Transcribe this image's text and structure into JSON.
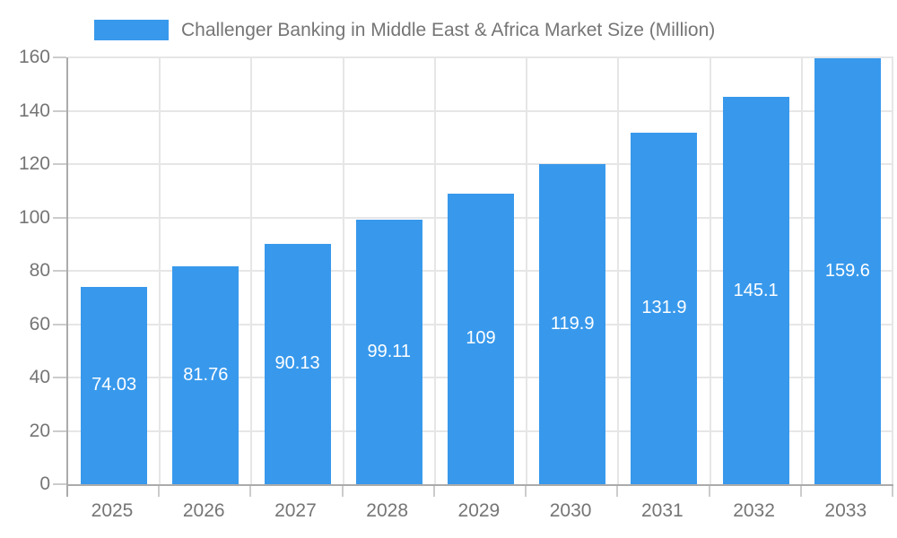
{
  "chart_data": {
    "type": "bar",
    "title": "Challenger Banking in Middle East & Africa Market Size (Million)",
    "categories": [
      "2025",
      "2026",
      "2027",
      "2028",
      "2029",
      "2030",
      "2031",
      "2032",
      "2033"
    ],
    "values": [
      74.03,
      81.76,
      90.13,
      99.11,
      109,
      119.9,
      131.9,
      145.1,
      159.6
    ],
    "value_labels": [
      "74.03",
      "81.76",
      "90.13",
      "99.11",
      "109",
      "119.9",
      "131.9",
      "145.1",
      "159.6"
    ],
    "xlabel": "",
    "ylabel": "",
    "ylim": [
      0,
      160
    ],
    "ytick_step": 20,
    "ytick_labels": [
      "0",
      "20",
      "40",
      "60",
      "80",
      "100",
      "120",
      "140",
      "160"
    ],
    "grid": true,
    "legend_position": "top",
    "colors": {
      "bar": "#3899ec",
      "axis_text": "#757575",
      "bar_label_text": "#ffffff",
      "gridline": "#e6e6e6",
      "axis_line": "#ababab",
      "tick": "#cccccc"
    }
  }
}
